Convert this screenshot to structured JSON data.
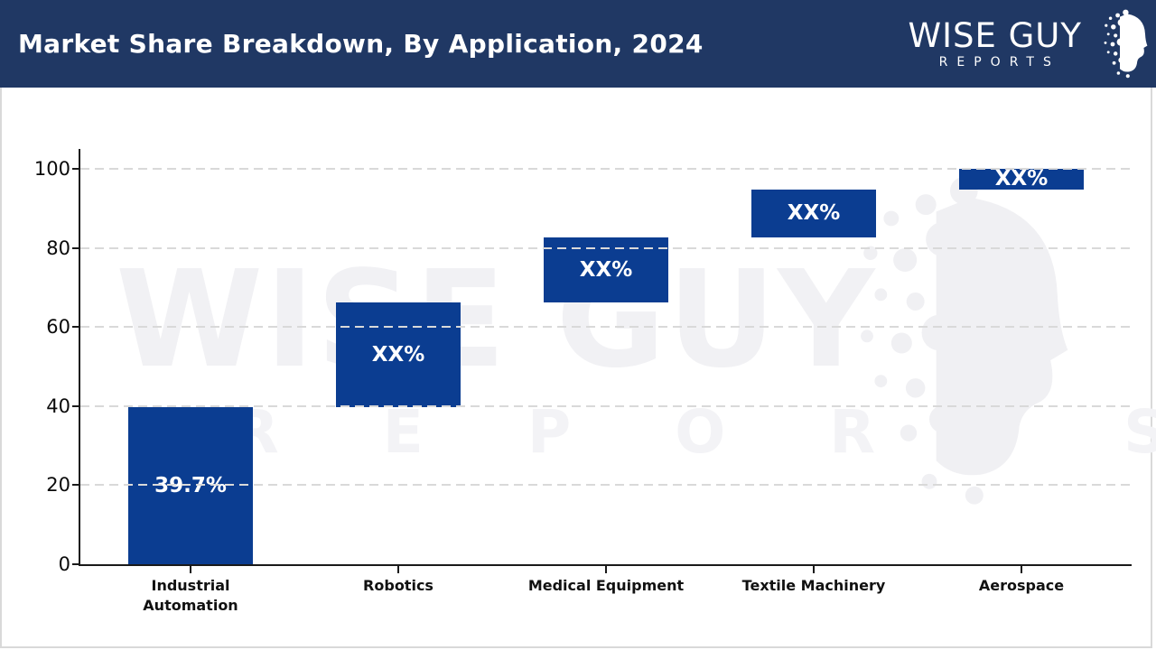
{
  "header": {
    "title": "Market Share Breakdown, By Application, 2024",
    "bg_color": "#203864",
    "logo": {
      "line1": "WISE GUY",
      "line2": "REPORTS",
      "head_icon": "dotted-head-profile-icon"
    }
  },
  "watermark": {
    "line1": "WISE GUY",
    "line2": "R E P O R T S"
  },
  "chart_data": {
    "type": "bar",
    "subtype": "waterfall-floating-bars",
    "title": "Market Share Breakdown, By Application, 2024",
    "categories": [
      "Industrial Automation",
      "Robotics",
      "Medical Equipment",
      "Textile Machinery",
      "Aerospace"
    ],
    "segments": [
      {
        "category": "Industrial Automation",
        "start": 0,
        "end": 39.7,
        "label": "39.7%"
      },
      {
        "category": "Robotics",
        "start": 39.7,
        "end": 66.2,
        "label": "XX%"
      },
      {
        "category": "Medical Equipment",
        "start": 66.2,
        "end": 82.6,
        "label": "XX%"
      },
      {
        "category": "Textile Machinery",
        "start": 82.6,
        "end": 94.7,
        "label": "XX%"
      },
      {
        "category": "Aerospace",
        "start": 94.7,
        "end": 100,
        "label": "XX%"
      }
    ],
    "yticks": [
      0,
      20,
      40,
      60,
      80,
      100
    ],
    "ylim": [
      0,
      105
    ],
    "xlabel": "",
    "ylabel": "",
    "bar_color": "#0b3d91",
    "grid": "dashed-horizontal",
    "legend": "none"
  }
}
